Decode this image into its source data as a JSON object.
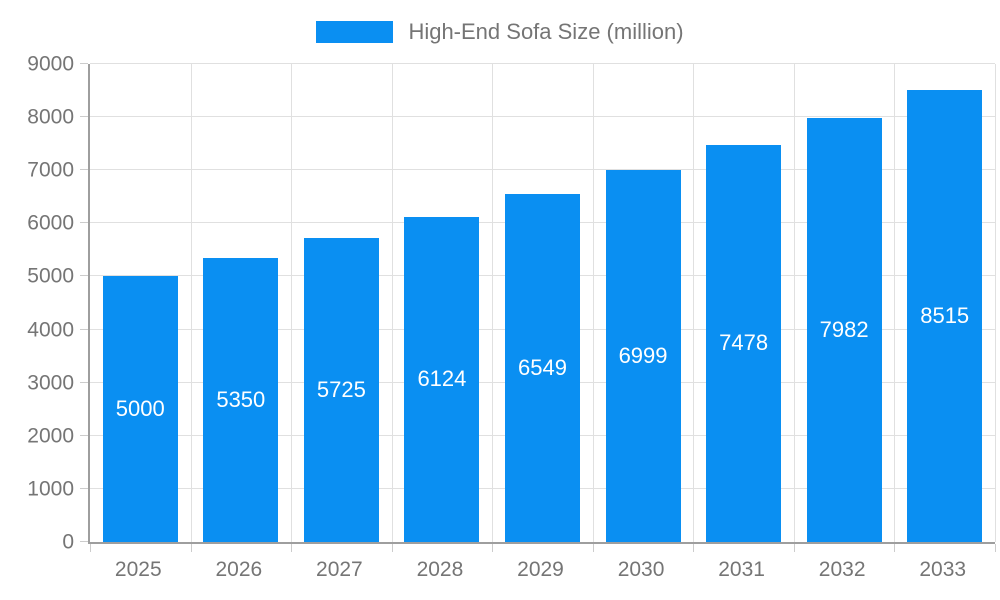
{
  "legend": {
    "label": "High-End Sofa Size (million)"
  },
  "chart_data": {
    "type": "bar",
    "title": "High-End Sofa Size (million)",
    "series_name": "High-End Sofa Size (million)",
    "categories": [
      "2025",
      "2026",
      "2027",
      "2028",
      "2029",
      "2030",
      "2031",
      "2032",
      "2033"
    ],
    "values": [
      5000,
      5350,
      5725,
      6124,
      6549,
      6999,
      7478,
      7982,
      8515
    ],
    "xlabel": "",
    "ylabel": "",
    "ylim": [
      0,
      9000
    ],
    "yticks": [
      0,
      1000,
      2000,
      3000,
      4000,
      5000,
      6000,
      7000,
      8000,
      9000
    ],
    "grid": true,
    "legend_position": "top",
    "bar_value_labels_shown": true,
    "colors": {
      "bar": "#0A8FF2",
      "bar_label": "#FFFFFF",
      "axis_text": "#757575",
      "grid_line": "#E0E0E0",
      "axis_line": "#9E9E9E",
      "tick": "#CCCCCC",
      "background": "#FFFFFF"
    }
  }
}
